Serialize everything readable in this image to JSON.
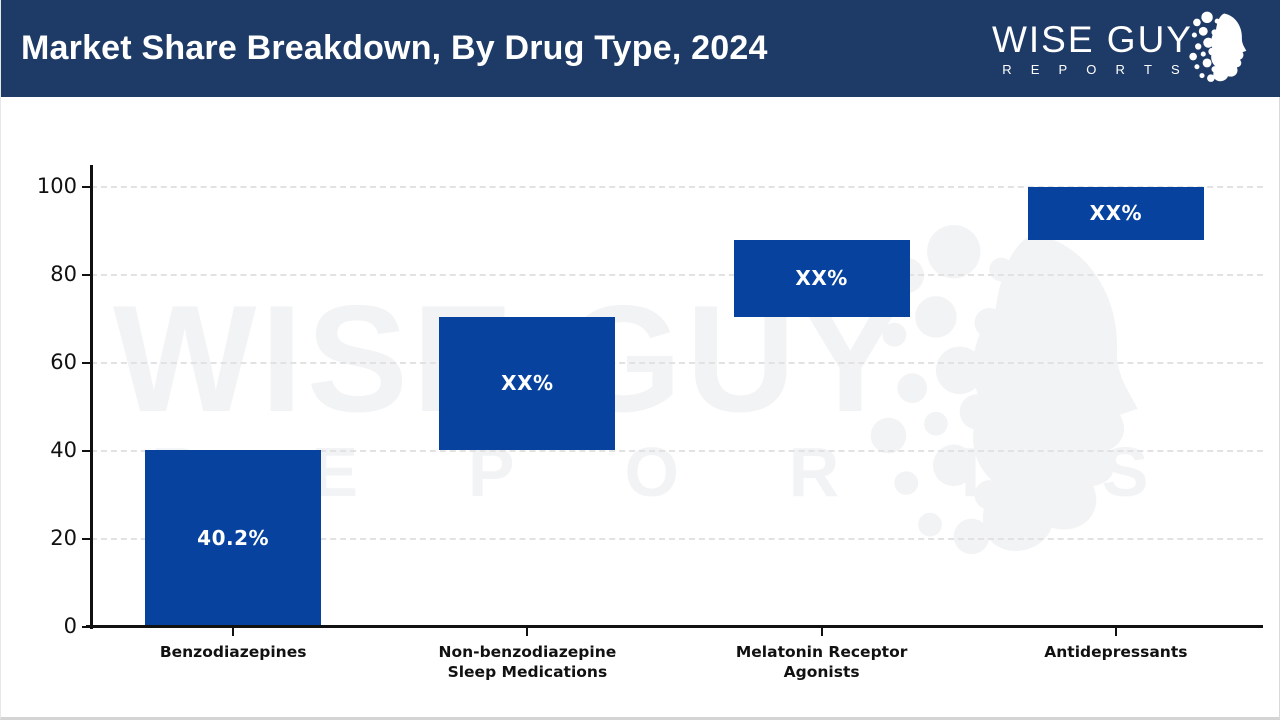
{
  "header": {
    "title": "Market Share Breakdown, By Drug Type, 2024",
    "logo": {
      "line1": "WISE GUY",
      "line2": "REPORTS"
    }
  },
  "watermark": {
    "line1": "WISE GUY",
    "line2": "REPORTS"
  },
  "chart_data": {
    "type": "bar",
    "subtype": "waterfall",
    "title": "Market Share Breakdown, By Drug Type, 2024",
    "categories": [
      "Benzodiazepines",
      "Non-benzodiazepine\nSleep Medications",
      "Melatonin Receptor\nAgonists",
      "Antidepressants"
    ],
    "segments": [
      {
        "category": "Benzodiazepines",
        "start": 0,
        "end": 40.2,
        "value_label": "40.2%"
      },
      {
        "category": "Non-benzodiazepine Sleep Medications",
        "start": 40.2,
        "end": 70.5,
        "value_label": "XX%"
      },
      {
        "category": "Melatonin Receptor Agonists",
        "start": 70.5,
        "end": 88,
        "value_label": "XX%"
      },
      {
        "category": "Antidepressants",
        "start": 88,
        "end": 100,
        "value_label": "XX%"
      }
    ],
    "yticks": [
      0,
      20,
      40,
      60,
      80,
      100
    ],
    "ylim": [
      0,
      105
    ],
    "xlabel": "",
    "ylabel": "",
    "legend": null,
    "grid": "horizontal-dashed",
    "bar_color": "#07439e",
    "header_color": "#1e3a66",
    "gridline_color": "#e2e2e2",
    "watermark_color": "#f2f3f5"
  }
}
